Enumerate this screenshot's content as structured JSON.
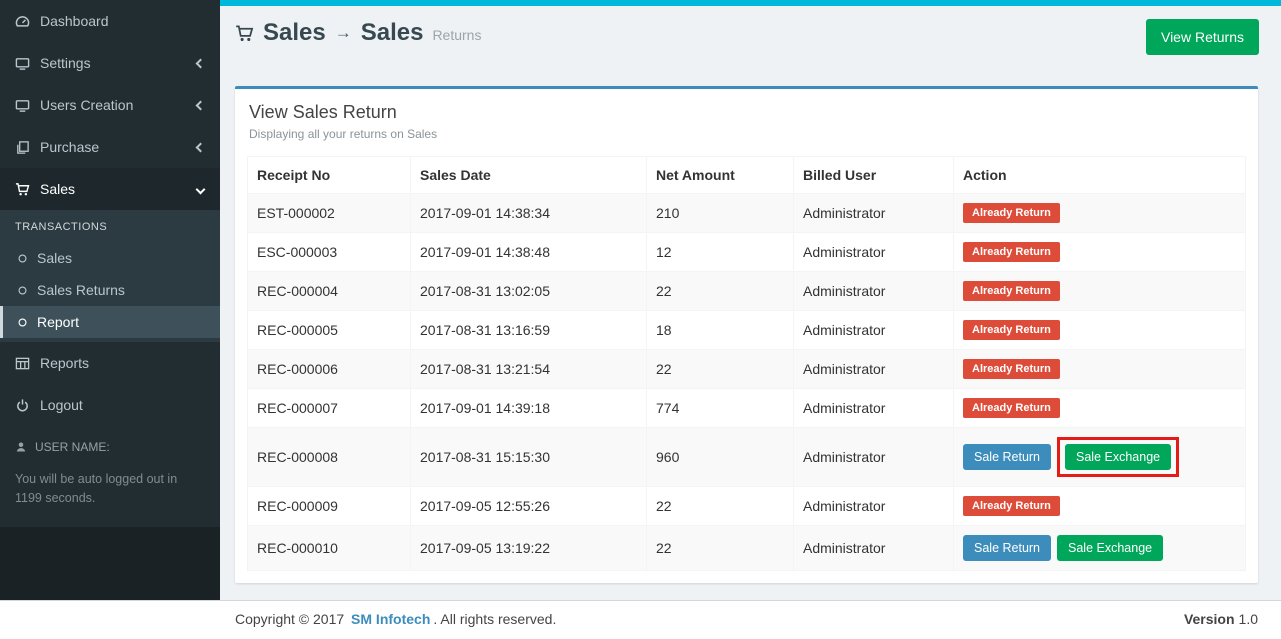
{
  "colors": {
    "topbar": "#00b7dc",
    "accent_blue": "#3c8dbc",
    "green": "#00a65a",
    "red": "#dd4b39",
    "annotation_red": "#e41b17",
    "sidebar_bg": "#222d32",
    "sidebar_submenu_bg": "#2c3b41",
    "sidebar_active_bg": "#1e282c",
    "content_bg": "#eef2f5"
  },
  "sidebar": {
    "items": [
      {
        "label": "Dashboard"
      },
      {
        "label": "Settings"
      },
      {
        "label": "Users Creation"
      },
      {
        "label": "Purchase"
      },
      {
        "label": "Sales"
      }
    ],
    "transactions": {
      "header": "TRANSACTIONS",
      "items": [
        {
          "label": "Sales"
        },
        {
          "label": "Sales Returns"
        },
        {
          "label": "Report"
        }
      ]
    },
    "lower": [
      {
        "label": "Reports"
      },
      {
        "label": "Logout"
      }
    ],
    "user_panel": {
      "label": "USER NAME:",
      "notice": "You will be auto logged out in 1199 seconds."
    }
  },
  "header": {
    "breadcrumb": {
      "first": "Sales",
      "arrow": "→",
      "second": "Sales",
      "sub": "Returns"
    },
    "view_returns_button": "View Returns"
  },
  "card": {
    "title": "View Sales Return",
    "subtitle": "Displaying all your returns on Sales"
  },
  "table": {
    "headers": [
      "Receipt No",
      "Sales Date",
      "Net Amount",
      "Billed User",
      "Action"
    ],
    "badges": {
      "already_return": "Already Return",
      "sale_return": "Sale Return",
      "sale_exchange": "Sale Exchange"
    },
    "rows": [
      {
        "receipt": "EST-000002",
        "date": "2017-09-01 14:38:34",
        "amount": "210",
        "user": "Administrator",
        "action": "already",
        "highlight": false
      },
      {
        "receipt": "ESC-000003",
        "date": "2017-09-01 14:38:48",
        "amount": "12",
        "user": "Administrator",
        "action": "already",
        "highlight": false
      },
      {
        "receipt": "REC-000004",
        "date": "2017-08-31 13:02:05",
        "amount": "22",
        "user": "Administrator",
        "action": "already",
        "highlight": false
      },
      {
        "receipt": "REC-000005",
        "date": "2017-08-31 13:16:59",
        "amount": "18",
        "user": "Administrator",
        "action": "already",
        "highlight": false
      },
      {
        "receipt": "REC-000006",
        "date": "2017-08-31 13:21:54",
        "amount": "22",
        "user": "Administrator",
        "action": "already",
        "highlight": false
      },
      {
        "receipt": "REC-000007",
        "date": "2017-09-01 14:39:18",
        "amount": "774",
        "user": "Administrator",
        "action": "already",
        "highlight": false
      },
      {
        "receipt": "REC-000008",
        "date": "2017-08-31 15:15:30",
        "amount": "960",
        "user": "Administrator",
        "action": "pair",
        "highlight": true
      },
      {
        "receipt": "REC-000009",
        "date": "2017-09-05 12:55:26",
        "amount": "22",
        "user": "Administrator",
        "action": "already",
        "highlight": false
      },
      {
        "receipt": "REC-000010",
        "date": "2017-09-05 13:19:22",
        "amount": "22",
        "user": "Administrator",
        "action": "pair",
        "highlight": false
      }
    ]
  },
  "footer": {
    "copyright": "Copyright © 2017",
    "company": "SM Infotech",
    "rights": ". All rights reserved.",
    "version_label": "Version",
    "version_value": "1.0"
  }
}
